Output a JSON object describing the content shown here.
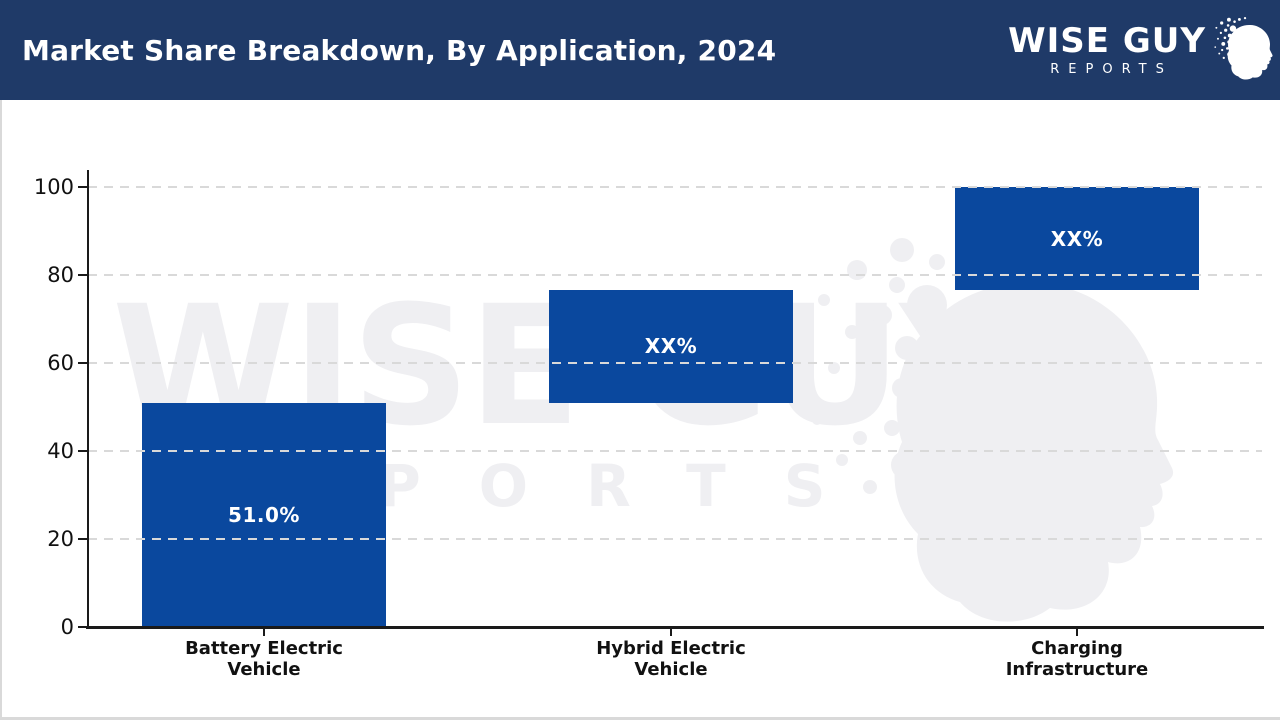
{
  "header": {
    "title": "Market Share Breakdown, By Application, 2024",
    "logo": {
      "name": "WISE GUY",
      "subtitle": "REPORTS"
    }
  },
  "watermark": {
    "name": "WISE GUY",
    "subtitle": "REPORTS"
  },
  "chart_data": {
    "type": "bar",
    "subtype": "waterfall",
    "title": "Market Share Breakdown, By Application, 2024",
    "categories": [
      "Battery Electric\nVehicle",
      "Hybrid Electric\nVehicle",
      "Charging\nInfrastructure"
    ],
    "series": [
      {
        "category": "Battery Electric Vehicle",
        "start": 0,
        "end": 51.0,
        "label": "51.0%"
      },
      {
        "category": "Hybrid Electric Vehicle",
        "start": 51.0,
        "end": 76.5,
        "label": "XX%"
      },
      {
        "category": "Charging Infrastructure",
        "start": 76.5,
        "end": 100,
        "label": "XX%"
      }
    ],
    "ylim": [
      0,
      100
    ],
    "yticks": [
      0,
      20,
      40,
      60,
      80,
      100
    ],
    "grid": "horizontal-dashed",
    "legend": "none",
    "bar_color": "#0a489e",
    "bar_label_color": "#ffffff"
  },
  "colors": {
    "header_bg": "#1f3a68",
    "bar": "#0a489e",
    "gridline": "#d9d9d9",
    "axis": "#1a1a1a",
    "watermark": "#efeff2"
  }
}
